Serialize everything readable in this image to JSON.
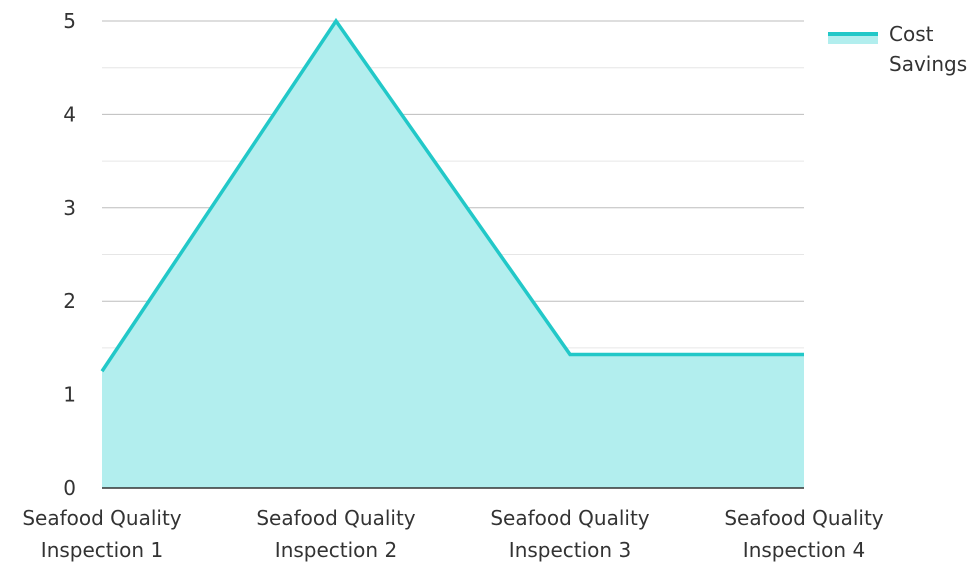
{
  "chart_data": {
    "type": "area",
    "categories": [
      [
        "Seafood Quality",
        "Inspection 1"
      ],
      [
        "Seafood Quality",
        "Inspection 2"
      ],
      [
        "Seafood Quality",
        "Inspection 3"
      ],
      [
        "Seafood Quality",
        "Inspection 4"
      ]
    ],
    "series": [
      {
        "name": "Cost Savings",
        "values": [
          1.25,
          5,
          1.43,
          1.43
        ],
        "line_color": "#22C8C8",
        "fill_color": "#B2EEEE"
      }
    ],
    "ylim": [
      0,
      5
    ],
    "yticks": [
      0,
      1,
      2,
      3,
      4,
      5
    ],
    "grid": true,
    "legend_position": "top-right",
    "legend_lines": [
      "Cost",
      "Savings"
    ],
    "colors": {
      "grid_major": "#BDBDBD",
      "grid_minor": "#E6E6E6",
      "axis": "#333333",
      "text": "#333333"
    }
  }
}
